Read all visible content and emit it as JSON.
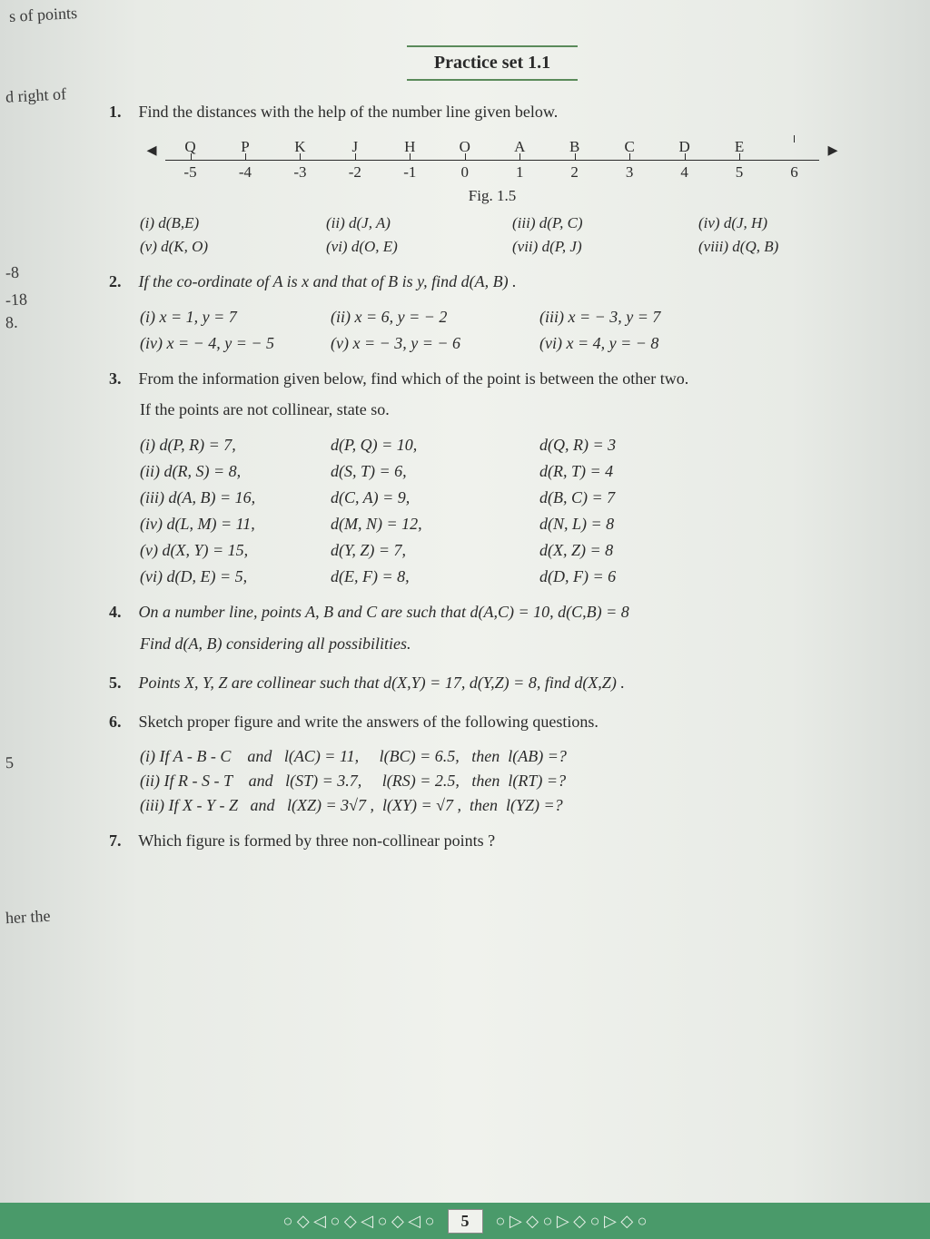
{
  "edge": {
    "top": "s of points",
    "left1": "d right of",
    "left2": "-8",
    "left3": "-18",
    "left4": "8.",
    "left5": "5",
    "left6": "her the"
  },
  "title": "Practice set 1.1",
  "q1": {
    "num": "1.",
    "text": "Find the distances with the help of the number line given below.",
    "labels": [
      "Q",
      "P",
      "K",
      "J",
      "H",
      "O",
      "A",
      "B",
      "C",
      "D",
      "E",
      ""
    ],
    "nums": [
      "-5",
      "-4",
      "-3",
      "-2",
      "-1",
      "0",
      "1",
      "2",
      "3",
      "4",
      "5",
      "6"
    ],
    "caption": "Fig. 1.5",
    "opts": [
      "(i) d(B,E)",
      "(ii) d(J, A)",
      "(iii) d(P, C)",
      "(iv) d(J, H)",
      "(v) d(K, O)",
      "(vi) d(O, E)",
      "(vii) d(P, J)",
      "(viii) d(Q, B)"
    ]
  },
  "q2": {
    "num": "2.",
    "text": "If the co-ordinate of A is x  and that of B is y, find  d(A, B) .",
    "opts": [
      "(i) x = 1, y = 7",
      "(ii) x = 6, y = − 2",
      "(iii) x = − 3, y = 7",
      "(iv) x = − 4, y = − 5",
      "(v) x = − 3, y = − 6",
      "(vi) x = 4, y = − 8"
    ]
  },
  "q3": {
    "num": "3.",
    "text": "From the information given below, find which of the point is between the other two.",
    "sub": "If the points are not collinear, state so.",
    "rows": [
      [
        "(i) d(P, R) = 7,",
        "d(P, Q) = 10,",
        "d(Q, R) = 3"
      ],
      [
        "(ii) d(R, S) = 8,",
        "d(S, T) = 6,",
        "d(R, T) = 4"
      ],
      [
        "(iii) d(A, B) = 16,",
        "d(C, A) = 9,",
        "d(B, C) = 7"
      ],
      [
        "(iv) d(L, M) = 11,",
        "d(M, N) = 12,",
        "d(N, L) = 8"
      ],
      [
        "(v) d(X, Y) = 15,",
        "d(Y, Z) = 7,",
        "d(X, Z) = 8"
      ],
      [
        "(vi) d(D, E) = 5,",
        "d(E, F) = 8,",
        "d(D, F) = 6"
      ]
    ]
  },
  "q4": {
    "num": "4.",
    "line1": "On a number line, points A, B and C are such that  d(A,C) = 10, d(C,B) = 8",
    "line2": "Find d(A, B) considering all possibilities."
  },
  "q5": {
    "num": "5.",
    "text": "Points X, Y, Z are collinear such that d(X,Y) = 17, d(Y,Z) = 8, find d(X,Z) ."
  },
  "q6": {
    "num": "6.",
    "text": "Sketch proper figure and write the answers of the following questions.",
    "rows": [
      "(i) If A - B - C    and   l(AC) = 11,     l(BC) = 6.5,   then  l(AB) =?",
      "(ii) If R - S - T    and   l(ST) = 3.7,     l(RS) = 2.5,   then  l(RT) =?",
      "(iii) If X - Y - Z   and   l(XZ) = 3√7 ,  l(XY) = √7 ,  then  l(YZ) =?"
    ]
  },
  "q7": {
    "num": "7.",
    "text": "Which figure is formed by three non-collinear points ?"
  },
  "footer": {
    "shapes_left": "○ ◇ ◁ ○ ◇ ◁ ○ ◇ ◁ ○",
    "page": "5",
    "shapes_right": "○ ▷ ◇ ○ ▷ ◇ ○ ▷ ◇ ○"
  }
}
